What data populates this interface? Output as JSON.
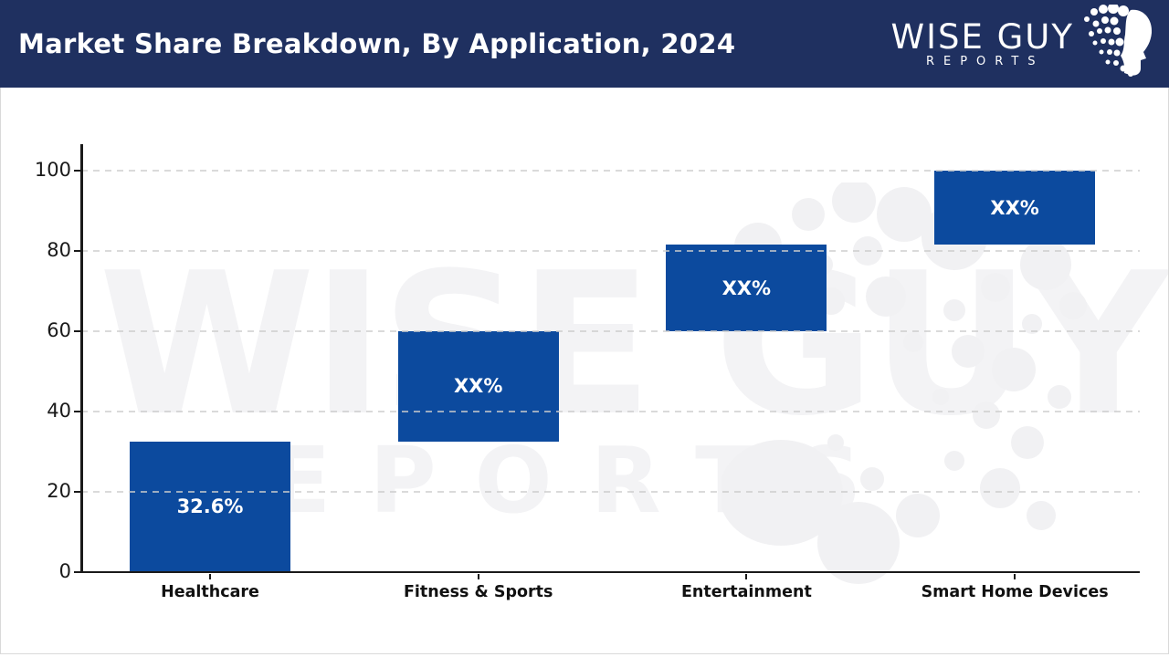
{
  "header": {
    "title": "Market Share Breakdown, By Application, 2024",
    "bg_color": "#1f3060",
    "logo": {
      "line1": "WISE GUY",
      "line2": "REPORTS"
    }
  },
  "watermark": {
    "line1": "WISE GUY",
    "line2": "REPORTS"
  },
  "chart_data": {
    "type": "bar",
    "subtype": "waterfall",
    "title": "Market Share Breakdown, By Application, 2024",
    "xlabel": "",
    "ylabel": "",
    "categories": [
      "Healthcare",
      "Fitness & Sports",
      "Entertainment",
      "Smart Home Devices"
    ],
    "segments": [
      {
        "category": "Healthcare",
        "start": 0,
        "end": 32.6,
        "label": "32.6%"
      },
      {
        "category": "Fitness & Sports",
        "start": 32.6,
        "end": 60,
        "label": "XX%"
      },
      {
        "category": "Entertainment",
        "start": 60,
        "end": 81.5,
        "label": "XX%"
      },
      {
        "category": "Smart Home Devices",
        "start": 81.5,
        "end": 100,
        "label": "XX%"
      }
    ],
    "yticks": [
      0,
      20,
      40,
      60,
      80,
      100
    ],
    "ylim": [
      0,
      105
    ],
    "grid": "horizontal-dashed",
    "legend": "none",
    "bar_color": "#0c4a9e",
    "label_color": "#ffffff"
  }
}
